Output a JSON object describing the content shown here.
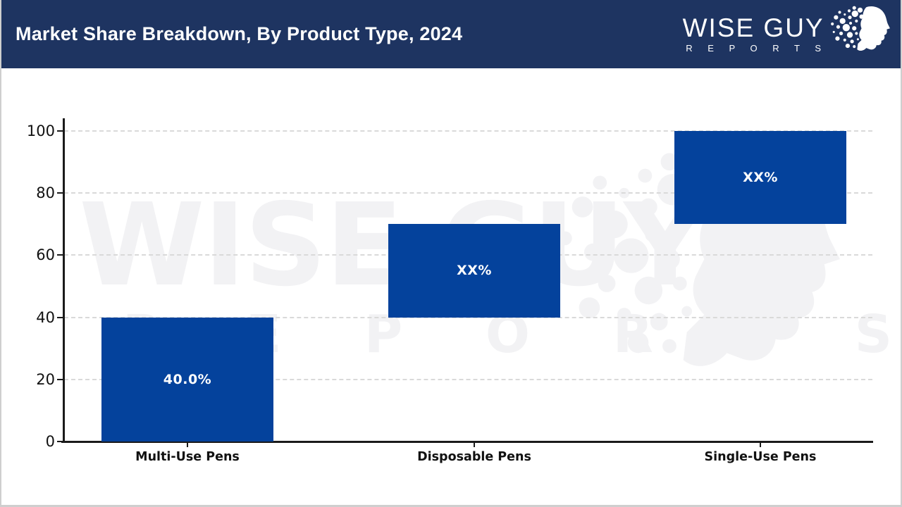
{
  "header": {
    "title": "Market Share Breakdown, By Product Type, 2024",
    "bg_color": "#1e3461",
    "logo": {
      "line1": "WISE GUY",
      "line2": "R E P O R T S"
    }
  },
  "watermark": {
    "line1": "WISE GUY",
    "line2": "R E P O R T S"
  },
  "chart_data": {
    "type": "bar",
    "subtype": "floating-segment-bars",
    "title": "Market Share Breakdown, By Product Type, 2024",
    "categories": [
      "Multi-Use Pens",
      "Disposable Pens",
      "Single-Use Pens"
    ],
    "bars": [
      {
        "category": "Multi-Use Pens",
        "from": 0,
        "to": 40,
        "label": "40.0%"
      },
      {
        "category": "Disposable Pens",
        "from": 40,
        "to": 70,
        "label": "XX%"
      },
      {
        "category": "Single-Use Pens",
        "from": 70,
        "to": 100,
        "label": "XX%"
      }
    ],
    "yticks": [
      0,
      20,
      40,
      60,
      80,
      100
    ],
    "ylim": [
      0,
      105
    ],
    "xlabel": "",
    "ylabel": "",
    "grid": "horizontal-dashed",
    "legend": "none",
    "bar_color": "#04429c",
    "bar_label_color": "#ffffff",
    "axis_color": "#1a1a1a",
    "gridline_color": "#d9d9d9"
  }
}
